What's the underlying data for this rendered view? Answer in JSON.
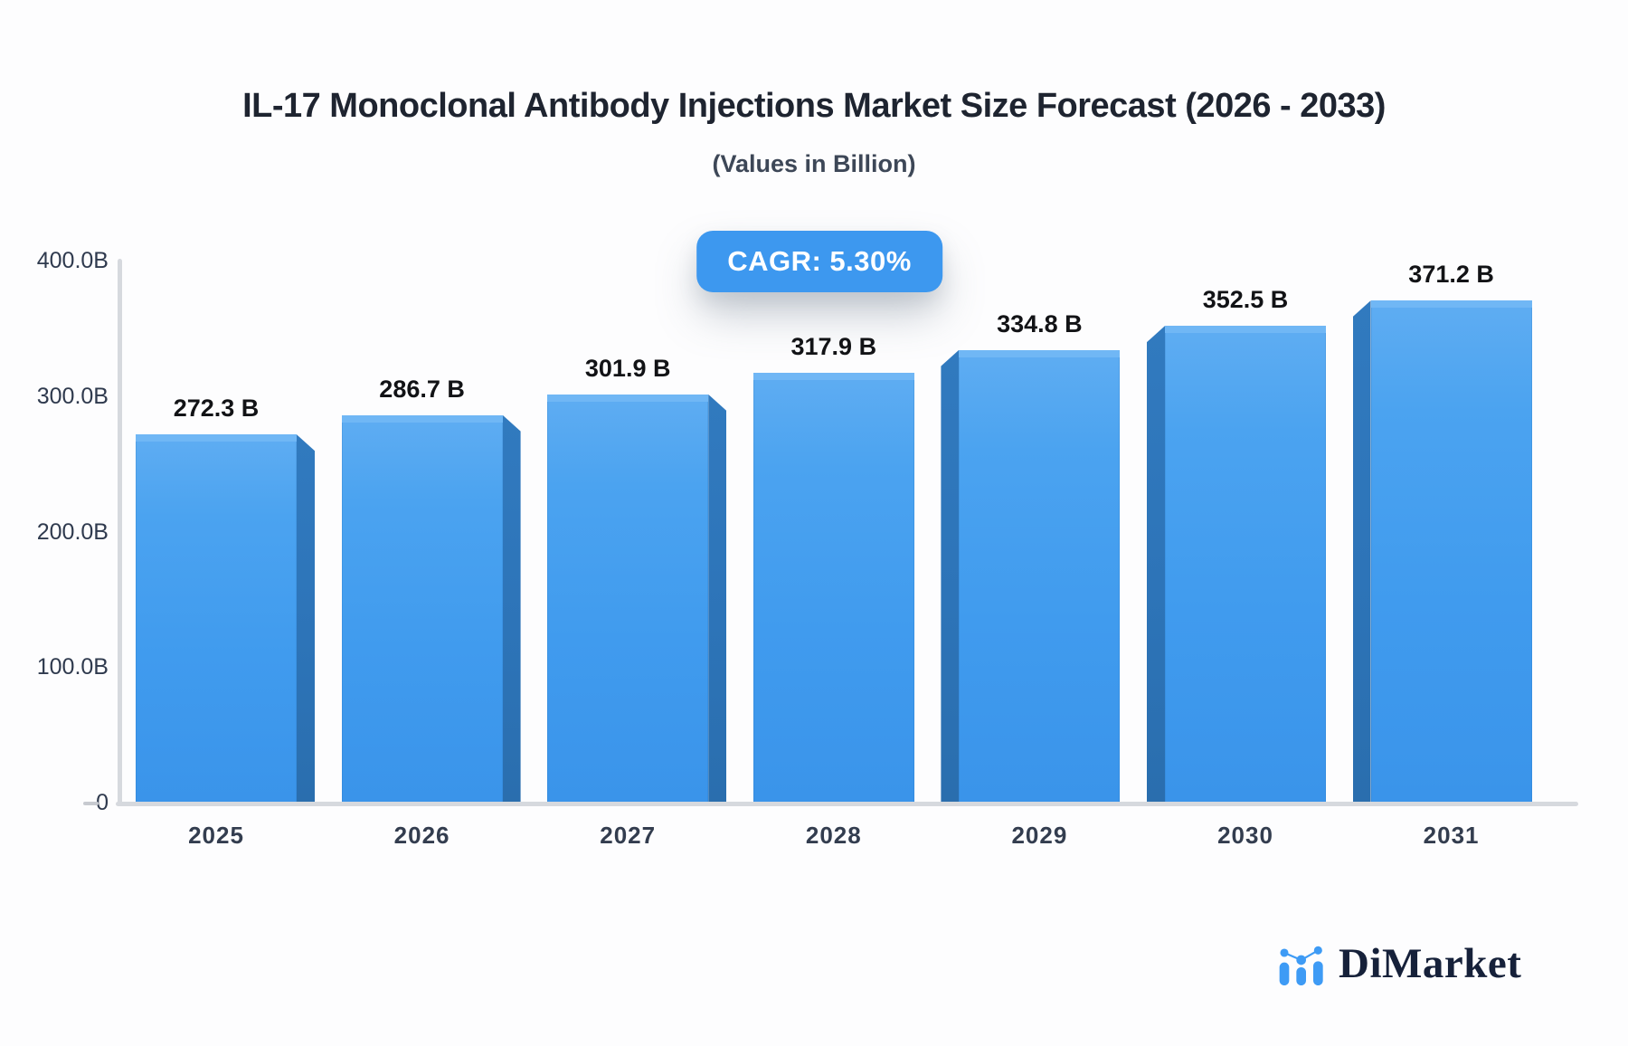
{
  "header": {
    "title": "IL-17 Monoclonal Antibody Injections Market Size Forecast (2026 - 2033)",
    "subtitle": "(Values in Billion)"
  },
  "badge": {
    "label": "CAGR: 5.30%"
  },
  "logo": {
    "text": "DiMarket"
  },
  "chart_data": {
    "type": "bar",
    "title": "IL-17 Monoclonal Antibody Injections Market Size Forecast (2026 - 2033)",
    "subtitle": "(Values in Billion)",
    "cagr": "5.30%",
    "unit": "Billion",
    "categories": [
      "2025",
      "2026",
      "2027",
      "2028",
      "2029",
      "2030",
      "2031"
    ],
    "values": [
      272.3,
      286.7,
      301.9,
      317.9,
      334.8,
      352.5,
      371.2
    ],
    "value_labels": [
      "272.3 B",
      "286.7 B",
      "301.9 B",
      "317.9 B",
      "334.8 B",
      "352.5 B",
      "371.2 B"
    ],
    "ylim": [
      0,
      400
    ],
    "yticks": [
      {
        "label": "400.0B",
        "value": 400
      },
      {
        "label": "300.0B",
        "value": 300
      },
      {
        "label": "200.0B",
        "value": 200
      },
      {
        "label": "100.0B",
        "value": 100
      },
      {
        "label": "0",
        "value": 0
      }
    ],
    "grid": false,
    "legend": false,
    "colors": {
      "bar_front": "#429cee",
      "bar_top_highlight": "#70b7f5",
      "bar_side": "#2d74b8",
      "axis": "#d6d9de",
      "badge_bg": "#3d98ef",
      "badge_text": "#ffffff",
      "title_text": "#1e2430",
      "tick_text": "#2f3a4e",
      "value_text": "#121316",
      "logo_blue": "#3e9bf5",
      "logo_text": "#16213a"
    }
  }
}
